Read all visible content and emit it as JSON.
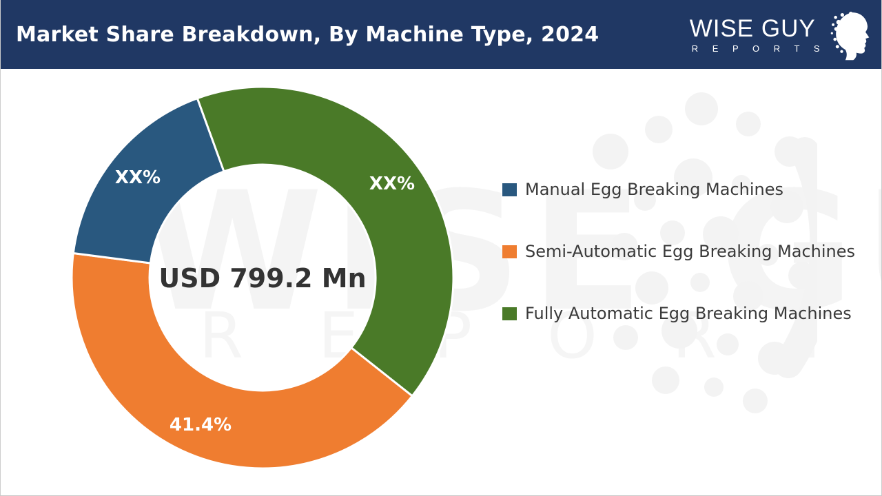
{
  "header": {
    "title": "Market Share Breakdown, By Machine Type, 2024",
    "bg_color": "#203864"
  },
  "logo": {
    "line1": "WISE GUY",
    "line2": "R E P O R T S"
  },
  "watermark": {
    "line1": "WISE GUY",
    "line2": "R E P O R T S"
  },
  "chart_data": {
    "type": "pie",
    "subtype": "donut",
    "title": "Market Share Breakdown, By Machine Type, 2024",
    "center_label": "USD 799.2 Mn",
    "start_angle_deg": 340,
    "clockwise": true,
    "legend_position": "right",
    "segments": [
      {
        "name": "Fully Automatic Egg Breaking Machines",
        "pct": 41.2,
        "displayed_label": "XX%",
        "color": "#4a7a28"
      },
      {
        "name": "Semi-Automatic Egg Breaking Machines",
        "pct": 41.4,
        "displayed_label": "41.4%",
        "color": "#ef7d30"
      },
      {
        "name": "Manual Egg Breaking Machines",
        "pct": 17.4,
        "displayed_label": "XX%",
        "color": "#29587f"
      }
    ]
  },
  "legend": {
    "items": [
      {
        "label": "Manual Egg Breaking Machines",
        "color": "#29587f"
      },
      {
        "label": "Semi-Automatic Egg Breaking Machines",
        "color": "#ef7d30"
      },
      {
        "label": "Fully Automatic Egg Breaking Machines",
        "color": "#4a7a28"
      }
    ]
  }
}
